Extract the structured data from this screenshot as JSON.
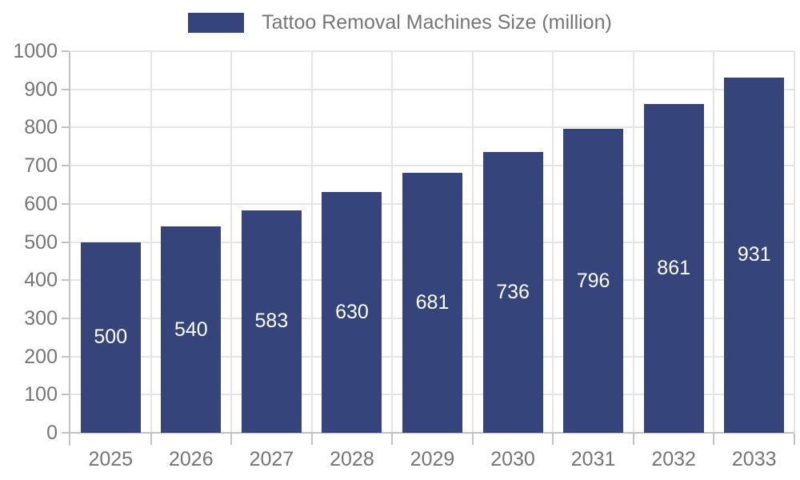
{
  "chart_data": {
    "type": "bar",
    "title": "Tattoo Removal Machines Size (million)",
    "categories": [
      "2025",
      "2026",
      "2027",
      "2028",
      "2029",
      "2030",
      "2031",
      "2032",
      "2033"
    ],
    "values": [
      500,
      540,
      583,
      630,
      681,
      736,
      796,
      861,
      931
    ],
    "xlabel": "",
    "ylabel": "",
    "ylim": [
      0,
      1000
    ],
    "y_ticks": [
      0,
      100,
      200,
      300,
      400,
      500,
      600,
      700,
      800,
      900,
      1000
    ],
    "grid": "horizontal and vertical gridlines on",
    "legend_position": "top-center",
    "value_labels": "centered inside bars",
    "colors": {
      "bar": "#35457C",
      "grid": "#e4e4e4",
      "axis": "#c2c2c2",
      "tick_text": "#757575",
      "legend_text": "#757575",
      "value_text": "#ffffff",
      "background": "#ffffff"
    }
  }
}
